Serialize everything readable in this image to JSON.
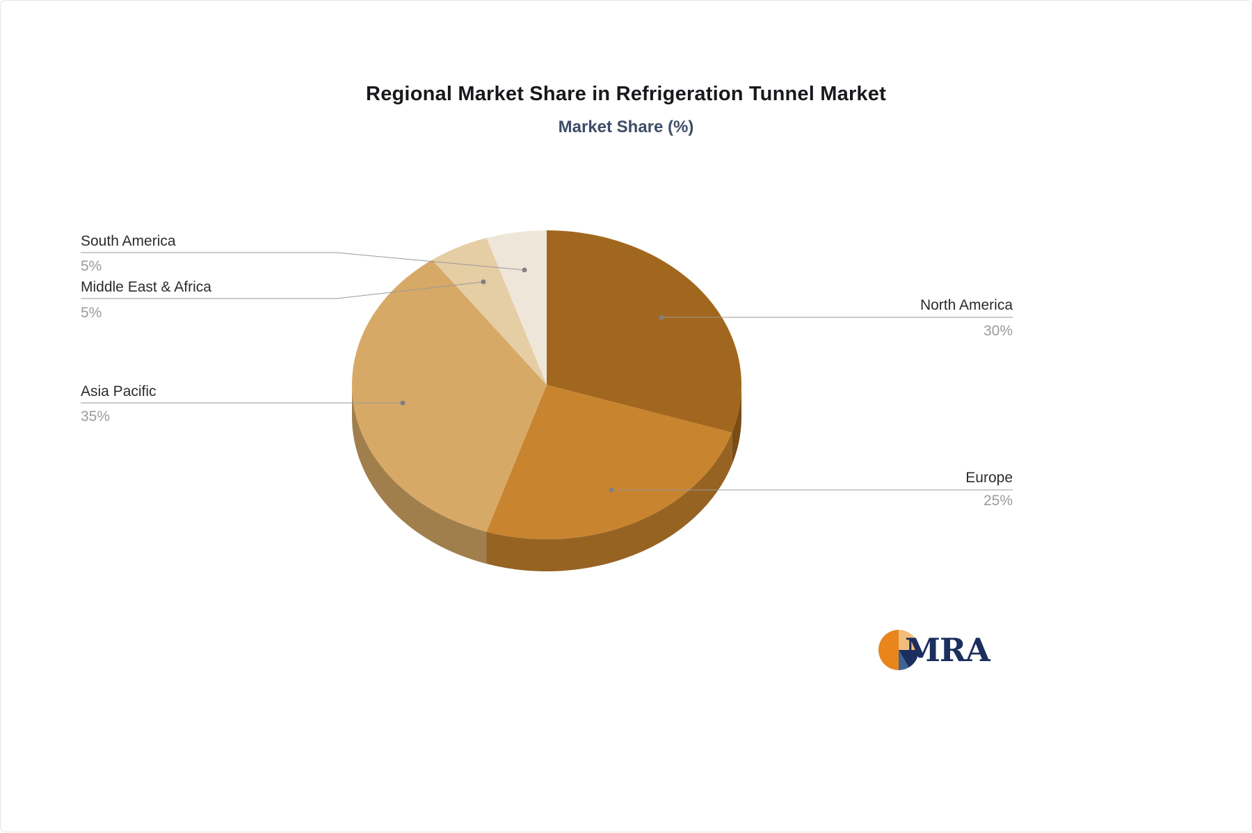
{
  "title": "Regional Market Share in Refrigeration Tunnel Market",
  "subtitle": "Market Share (%)",
  "chart_data": {
    "type": "pie",
    "title": "Regional Market Share in Refrigeration Tunnel Market",
    "subtitle": "Market Share (%)",
    "style": "3d",
    "start_angle_deg": -90,
    "direction": "clockwise",
    "legend": "none",
    "unit": "%",
    "slices": [
      {
        "label": "North America",
        "value": 30,
        "value_label": "30%",
        "color": "#A2671E"
      },
      {
        "label": "Europe",
        "value": 25,
        "value_label": "25%",
        "color": "#C8842F"
      },
      {
        "label": "Asia Pacific",
        "value": 35,
        "value_label": "35%",
        "color": "#D7A967"
      },
      {
        "label": "Middle East & Africa",
        "value": 5,
        "value_label": "5%",
        "color": "#E5CDA4"
      },
      {
        "label": "South America",
        "value": 5,
        "value_label": "5%",
        "color": "#EFE6DA"
      }
    ],
    "label_name_color": "#2B2B2B",
    "label_value_color": "#9B9B9B",
    "connector_color": "#999999",
    "connector_dot_color": "#808080"
  },
  "logo": {
    "text": "MRA",
    "colors": {
      "orange": "#E8851C",
      "tan": "#F0BD7C",
      "navy": "#1C2E5E",
      "blue": "#3E6493",
      "text": "#1C2E5E"
    }
  }
}
